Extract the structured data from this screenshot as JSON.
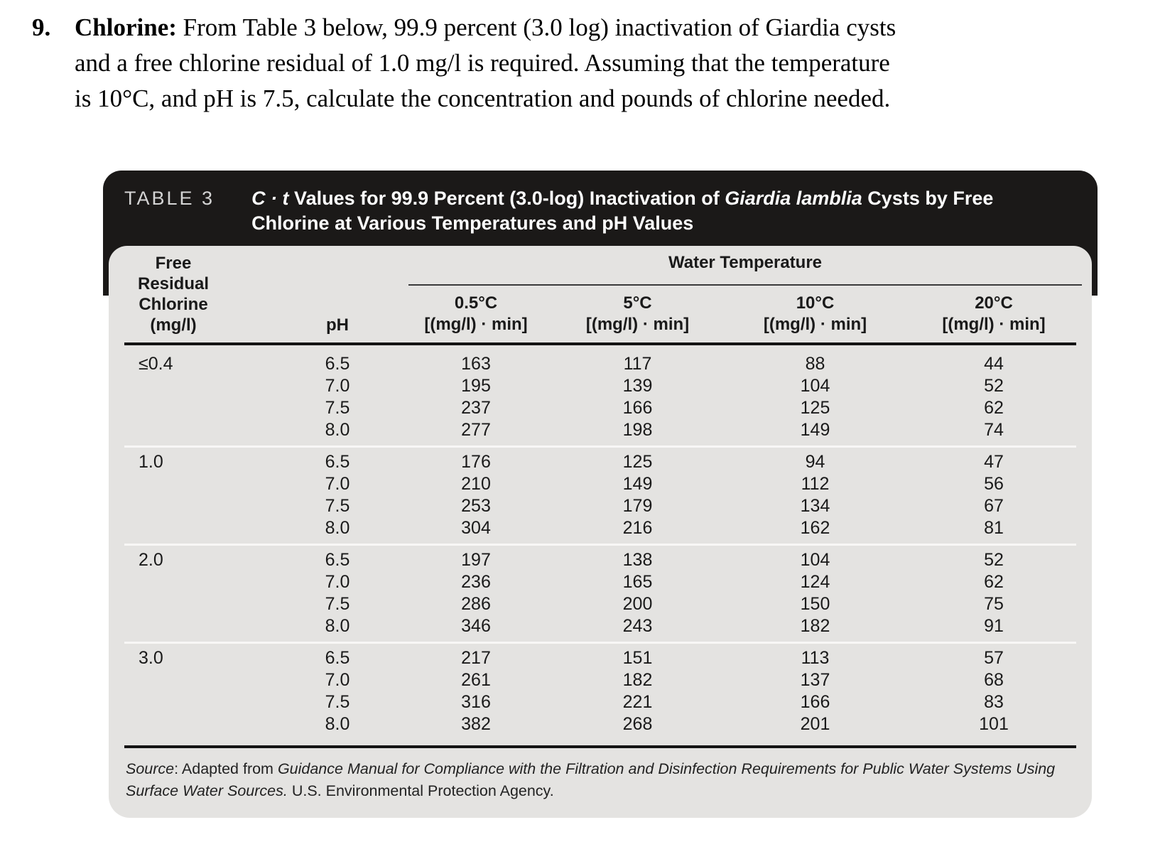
{
  "problem": {
    "number": "9.",
    "lead": "Chlorine:",
    "line1": " From Table 3 below, 99.9 percent (3.0 log) inactivation of Giardia cysts",
    "line2": "and a free chlorine residual of 1.0 mg/l is required. Assuming that the temperature",
    "line3": "is 10°C, and pH is 7.5, calculate the concentration and pounds of chlorine needed."
  },
  "table": {
    "label": "TABLE 3",
    "title": {
      "ct": "C · t",
      "part1": " Values for 99.9 Percent (3.0-log) Inactivation of ",
      "species": "Giardia lamblia",
      "part2": " Cysts by Free Chlorine at Various Temperatures and pH Values"
    },
    "headers": {
      "col1_lines": [
        "Free",
        "Residual",
        "Chlorine",
        "(mg/l)"
      ],
      "ph": "pH",
      "water_temperature": "Water Temperature",
      "temps": [
        {
          "temp": "0.5°C",
          "unit": "[(mg/l) · min]"
        },
        {
          "temp": "5°C",
          "unit": "[(mg/l) · min]"
        },
        {
          "temp": "10°C",
          "unit": "[(mg/l) · min]"
        },
        {
          "temp": "20°C",
          "unit": "[(mg/l) · min]"
        }
      ]
    },
    "blocks": [
      {
        "residual": "≤0.4",
        "rows": [
          {
            "ph": "6.5",
            "values": [
              "163",
              "117",
              "88",
              "44"
            ]
          },
          {
            "ph": "7.0",
            "values": [
              "195",
              "139",
              "104",
              "52"
            ]
          },
          {
            "ph": "7.5",
            "values": [
              "237",
              "166",
              "125",
              "62"
            ]
          },
          {
            "ph": "8.0",
            "values": [
              "277",
              "198",
              "149",
              "74"
            ]
          }
        ]
      },
      {
        "residual": "1.0",
        "rows": [
          {
            "ph": "6.5",
            "values": [
              "176",
              "125",
              "94",
              "47"
            ]
          },
          {
            "ph": "7.0",
            "values": [
              "210",
              "149",
              "112",
              "56"
            ]
          },
          {
            "ph": "7.5",
            "values": [
              "253",
              "179",
              "134",
              "67"
            ]
          },
          {
            "ph": "8.0",
            "values": [
              "304",
              "216",
              "162",
              "81"
            ]
          }
        ]
      },
      {
        "residual": "2.0",
        "rows": [
          {
            "ph": "6.5",
            "values": [
              "197",
              "138",
              "104",
              "52"
            ]
          },
          {
            "ph": "7.0",
            "values": [
              "236",
              "165",
              "124",
              "62"
            ]
          },
          {
            "ph": "7.5",
            "values": [
              "286",
              "200",
              "150",
              "75"
            ]
          },
          {
            "ph": "8.0",
            "values": [
              "346",
              "243",
              "182",
              "91"
            ]
          }
        ]
      },
      {
        "residual": "3.0",
        "rows": [
          {
            "ph": "6.5",
            "values": [
              "217",
              "151",
              "113",
              "57"
            ]
          },
          {
            "ph": "7.0",
            "values": [
              "261",
              "182",
              "137",
              "68"
            ]
          },
          {
            "ph": "7.5",
            "values": [
              "316",
              "221",
              "166",
              "83"
            ]
          },
          {
            "ph": "8.0",
            "values": [
              "382",
              "268",
              "201",
              "101"
            ]
          }
        ]
      }
    ],
    "source": {
      "label": "Source",
      "sep": ": ",
      "prefix": "Adapted from ",
      "title_line1": "Guidance Manual for Compliance with the Filtration and Disinfection Requirements for Public Water Systems Using",
      "title_line2": "Surface Water Sources.",
      "suffix": " U.S. Environmental Protection Agency."
    }
  }
}
